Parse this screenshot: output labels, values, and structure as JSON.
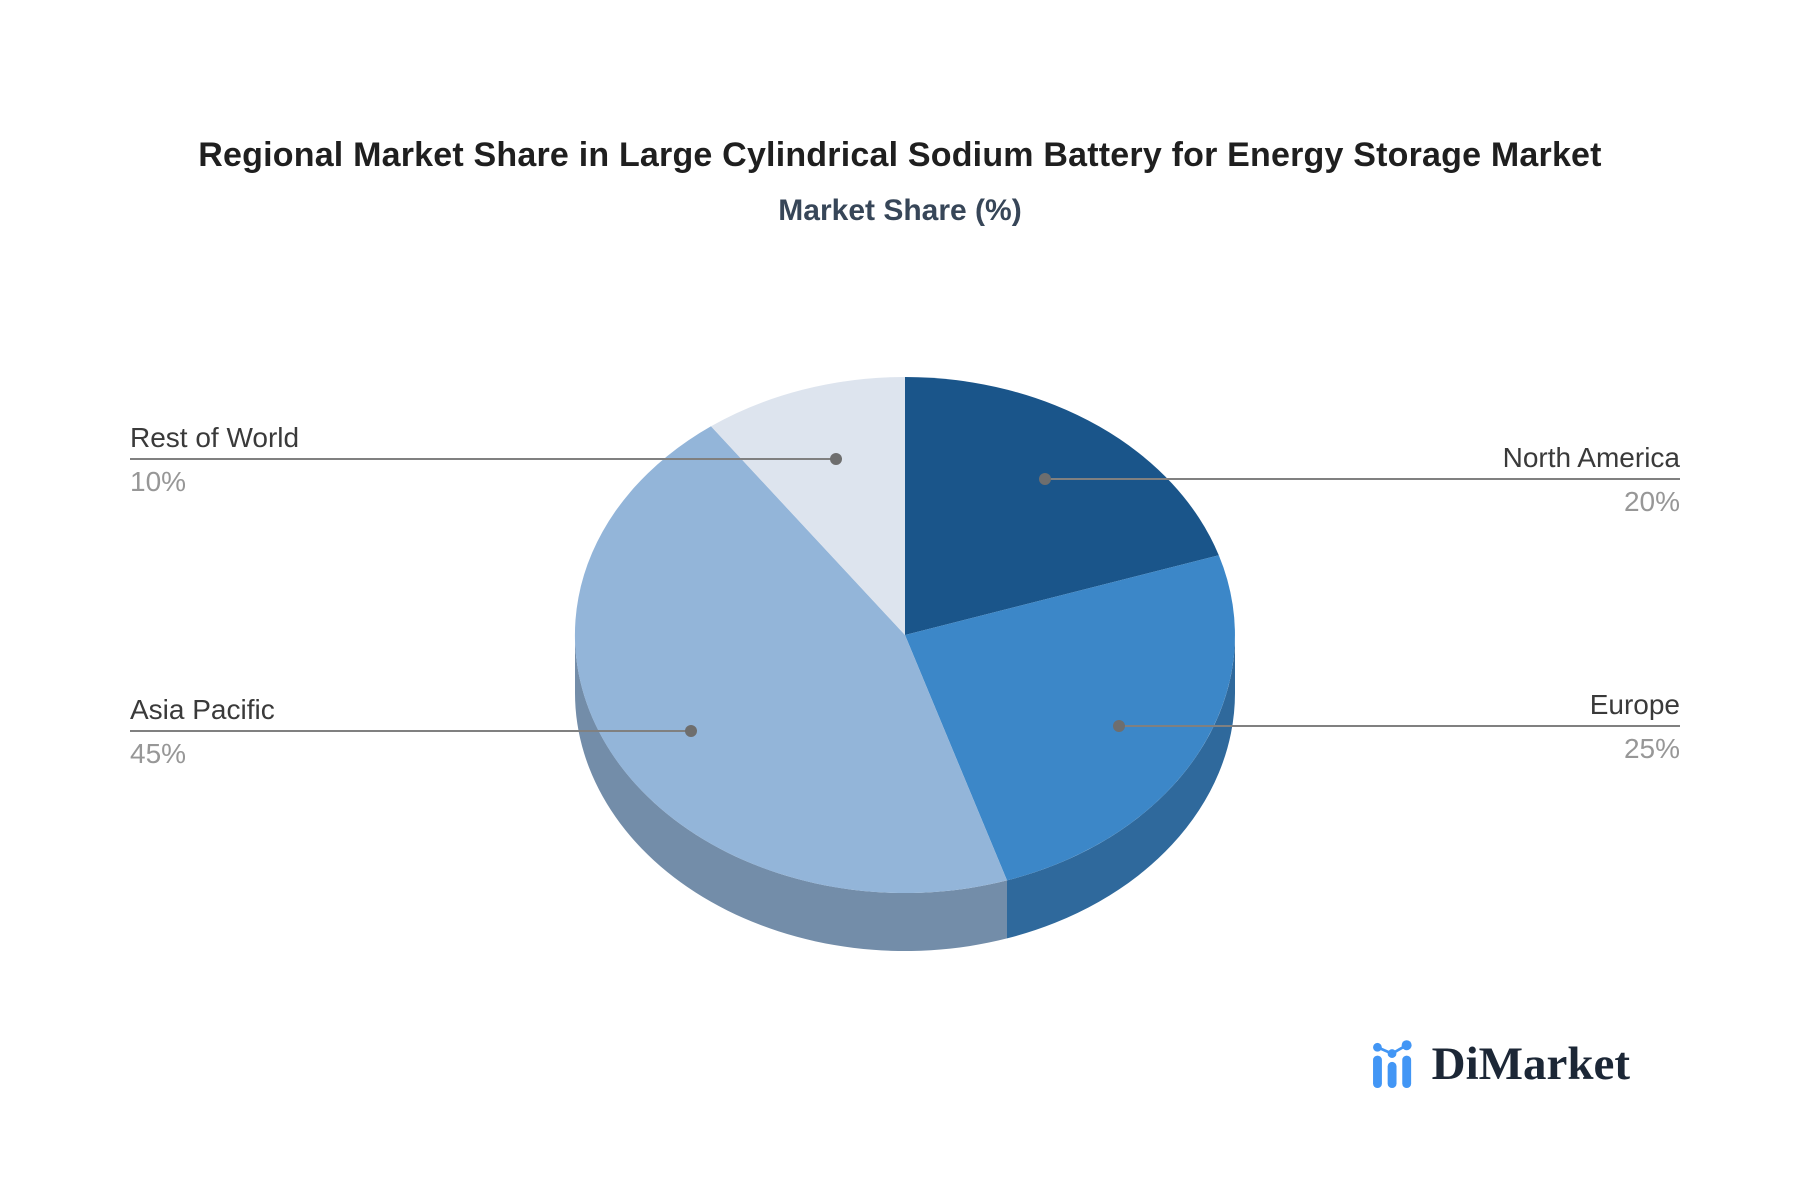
{
  "header": {
    "title": "Regional Market Share in Large Cylindrical Sodium Battery for Energy Storage Market",
    "subtitle": "Market Share (%)"
  },
  "chart_data": {
    "type": "pie",
    "title": "Regional Market Share in Large Cylindrical Sodium Battery for Energy Storage Market",
    "subtitle": "Market Share (%)",
    "unit": "percent",
    "effect": "3d",
    "start_angle_deg": 0,
    "direction": "clockwise",
    "legend": "none",
    "label_style": "external callouts with leader lines and dots",
    "slices": [
      {
        "label": "North America",
        "value": 20,
        "pct_label": "20%",
        "color": "#1a558a"
      },
      {
        "label": "Europe",
        "value": 25,
        "pct_label": "25%",
        "color": "#3c87c8"
      },
      {
        "label": "Asia Pacific",
        "value": 45,
        "pct_label": "45%",
        "color": "#93b5d9"
      },
      {
        "label": "Rest of World",
        "value": 10,
        "pct_label": "10%",
        "color": "#dde4ee"
      }
    ]
  },
  "style": {
    "leader_line_color": "#808080",
    "dot_color": "#6e6e6e",
    "label_color": "#3a3a3a",
    "pct_color": "#979797"
  },
  "logo": {
    "text": "DiMarket",
    "icon": "bar-chart-with-trend-dots",
    "icon_color": "#4296f5",
    "text_color": "#1c2736"
  }
}
